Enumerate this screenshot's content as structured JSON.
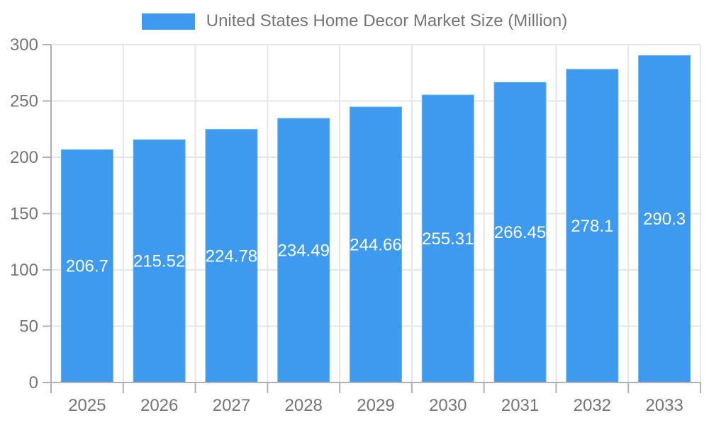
{
  "chart_data": {
    "type": "bar",
    "title": "United States Home Decor Market Size (Million)",
    "categories": [
      "2025",
      "2026",
      "2027",
      "2028",
      "2029",
      "2030",
      "2031",
      "2032",
      "2033"
    ],
    "values": [
      206.7,
      215.52,
      224.78,
      234.49,
      244.66,
      255.31,
      266.45,
      278.1,
      290.3
    ],
    "series_name": "United States Home Decor Market Size (Million)",
    "xlabel": "",
    "ylabel": "",
    "ylim": [
      0,
      300
    ],
    "yticks": [
      0,
      50,
      100,
      150,
      200,
      250,
      300
    ],
    "grid": true,
    "legend_position": "top",
    "bar_label_position": "center-inside"
  },
  "colors": {
    "bar_fill": "#3D9AEE",
    "bar_stroke": "#6AB0F3",
    "grid": "#E5E5E5",
    "axis": "#B0B0B0",
    "tick_text": "#757575",
    "bar_label_text": "#FFFFFF",
    "background": "#FFFFFF"
  }
}
